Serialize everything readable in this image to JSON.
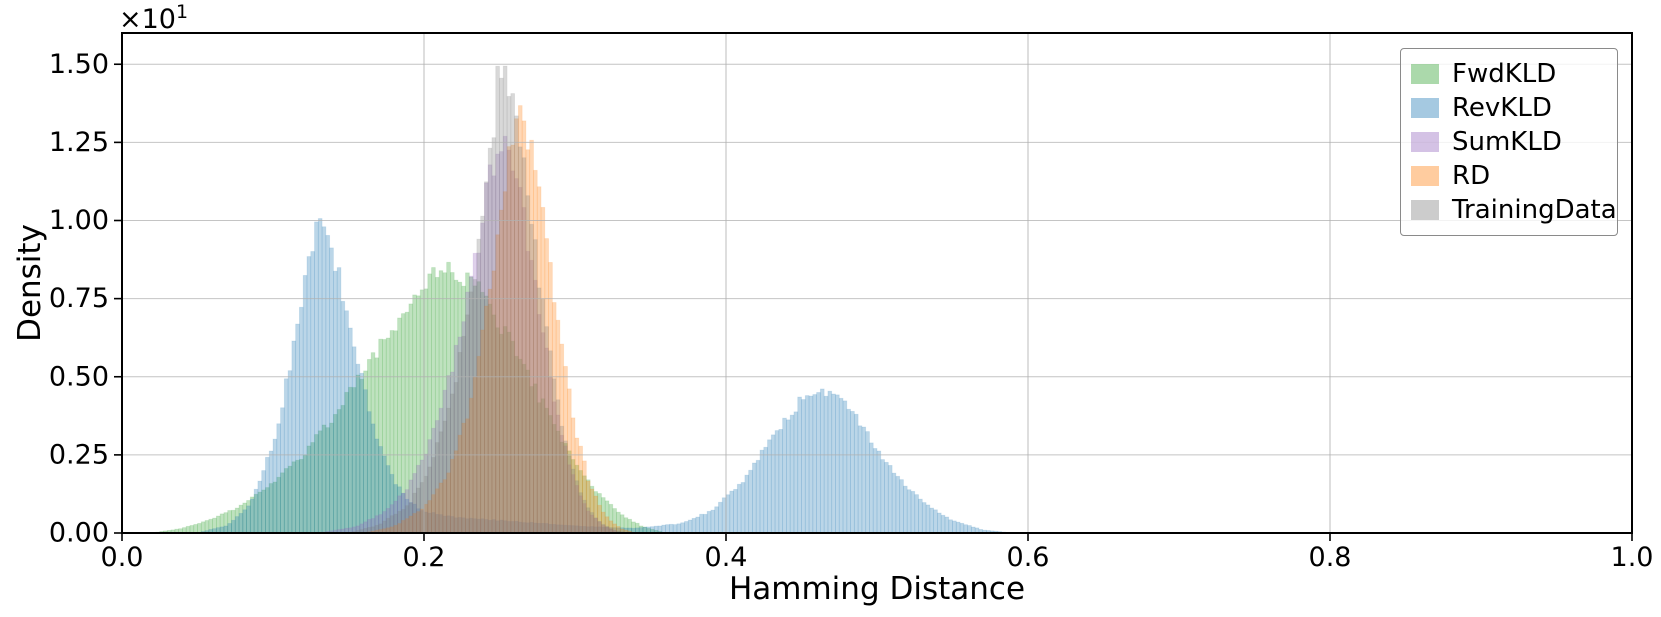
{
  "figure": {
    "xlabel": "Hamming Distance",
    "ylabel": "Density",
    "offset_text_base": "×10",
    "offset_text_exp": "1"
  },
  "chart_data": {
    "type": "bar",
    "subtype": "overlapping-density-histograms",
    "title": "",
    "xlabel": "Hamming Distance",
    "ylabel": "Density",
    "y_axis_offset_label": "×10¹",
    "xlim": [
      0.0,
      1.0
    ],
    "ylim": [
      0.0,
      16.0
    ],
    "grid": true,
    "legend_position": "upper right",
    "bin_width": 0.0025,
    "x_ticks": [
      {
        "value": 0.0,
        "label": "0.0"
      },
      {
        "value": 0.2,
        "label": "0.2"
      },
      {
        "value": 0.4,
        "label": "0.4"
      },
      {
        "value": 0.6,
        "label": "0.6"
      },
      {
        "value": 0.8,
        "label": "0.8"
      },
      {
        "value": 1.0,
        "label": "1.0"
      }
    ],
    "y_ticks": [
      {
        "value": 0.0,
        "label": "0.00"
      },
      {
        "value": 2.5,
        "label": "0.25"
      },
      {
        "value": 5.0,
        "label": "0.50"
      },
      {
        "value": 7.5,
        "label": "0.75"
      },
      {
        "value": 10.0,
        "label": "1.00"
      },
      {
        "value": 12.5,
        "label": "1.25"
      },
      {
        "value": 15.0,
        "label": "1.50"
      }
    ],
    "series": [
      {
        "name": "FwdKLD",
        "color": "#2ca02c",
        "fill_alpha": 0.3,
        "mode": 0.21,
        "peak_density": 8.5,
        "points": [
          [
            0.02,
            0.0
          ],
          [
            0.04,
            0.15
          ],
          [
            0.06,
            0.45
          ],
          [
            0.08,
            0.9
          ],
          [
            0.1,
            1.6
          ],
          [
            0.12,
            2.5
          ],
          [
            0.14,
            3.7
          ],
          [
            0.16,
            5.1
          ],
          [
            0.18,
            6.6
          ],
          [
            0.195,
            7.8
          ],
          [
            0.21,
            8.5
          ],
          [
            0.225,
            8.3
          ],
          [
            0.24,
            7.5
          ],
          [
            0.26,
            5.9
          ],
          [
            0.28,
            4.0
          ],
          [
            0.3,
            2.3
          ],
          [
            0.315,
            1.3
          ],
          [
            0.33,
            0.6
          ],
          [
            0.345,
            0.2
          ],
          [
            0.36,
            0.0
          ]
        ]
      },
      {
        "name": "RevKLD",
        "color": "#1f77b4",
        "fill_alpha": 0.3,
        "modes": [
          0.13,
          0.46
        ],
        "peak_densities": [
          10.0,
          4.65
        ],
        "points": [
          [
            0.05,
            0.0
          ],
          [
            0.07,
            0.25
          ],
          [
            0.085,
            0.9
          ],
          [
            0.1,
            2.8
          ],
          [
            0.11,
            5.0
          ],
          [
            0.12,
            7.6
          ],
          [
            0.13,
            10.0
          ],
          [
            0.14,
            9.0
          ],
          [
            0.15,
            6.9
          ],
          [
            0.16,
            4.7
          ],
          [
            0.17,
            2.9
          ],
          [
            0.18,
            1.7
          ],
          [
            0.19,
            1.0
          ],
          [
            0.2,
            0.7
          ],
          [
            0.22,
            0.5
          ],
          [
            0.25,
            0.4
          ],
          [
            0.28,
            0.3
          ],
          [
            0.31,
            0.2
          ],
          [
            0.34,
            0.15
          ],
          [
            0.37,
            0.3
          ],
          [
            0.39,
            0.7
          ],
          [
            0.41,
            1.6
          ],
          [
            0.43,
            3.0
          ],
          [
            0.45,
            4.3
          ],
          [
            0.46,
            4.65
          ],
          [
            0.475,
            4.35
          ],
          [
            0.49,
            3.4
          ],
          [
            0.51,
            2.0
          ],
          [
            0.53,
            1.0
          ],
          [
            0.55,
            0.4
          ],
          [
            0.57,
            0.1
          ],
          [
            0.59,
            0.0
          ]
        ]
      },
      {
        "name": "SumKLD",
        "color": "#9467bd",
        "fill_alpha": 0.3,
        "mode": 0.248,
        "peak_density": 12.6,
        "points": [
          [
            0.13,
            0.0
          ],
          [
            0.155,
            0.2
          ],
          [
            0.175,
            0.7
          ],
          [
            0.19,
            1.5
          ],
          [
            0.205,
            3.0
          ],
          [
            0.22,
            5.6
          ],
          [
            0.235,
            9.0
          ],
          [
            0.245,
            11.8
          ],
          [
            0.252,
            12.6
          ],
          [
            0.26,
            11.7
          ],
          [
            0.27,
            9.0
          ],
          [
            0.28,
            6.0
          ],
          [
            0.29,
            3.4
          ],
          [
            0.3,
            1.6
          ],
          [
            0.31,
            0.6
          ],
          [
            0.32,
            0.2
          ],
          [
            0.33,
            0.0
          ]
        ]
      },
      {
        "name": "RD",
        "color": "#ff7f0e",
        "fill_alpha": 0.3,
        "mode": 0.262,
        "peak_density": 13.4,
        "points": [
          [
            0.16,
            0.0
          ],
          [
            0.18,
            0.2
          ],
          [
            0.2,
            0.8
          ],
          [
            0.215,
            1.8
          ],
          [
            0.23,
            4.0
          ],
          [
            0.245,
            8.0
          ],
          [
            0.255,
            11.8
          ],
          [
            0.263,
            13.4
          ],
          [
            0.27,
            12.6
          ],
          [
            0.28,
            9.8
          ],
          [
            0.29,
            6.4
          ],
          [
            0.3,
            3.4
          ],
          [
            0.31,
            1.5
          ],
          [
            0.32,
            0.55
          ],
          [
            0.33,
            0.15
          ],
          [
            0.34,
            0.0
          ]
        ]
      },
      {
        "name": "TrainingData",
        "color": "#7f7f7f",
        "fill_alpha": 0.3,
        "mode": 0.25,
        "peak_density": 15.1,
        "points": [
          [
            0.15,
            0.0
          ],
          [
            0.17,
            0.25
          ],
          [
            0.19,
            0.9
          ],
          [
            0.205,
            2.2
          ],
          [
            0.22,
            4.6
          ],
          [
            0.235,
            8.6
          ],
          [
            0.245,
            12.6
          ],
          [
            0.25,
            15.1
          ],
          [
            0.257,
            14.2
          ],
          [
            0.265,
            12.0
          ],
          [
            0.275,
            8.6
          ],
          [
            0.285,
            5.2
          ],
          [
            0.295,
            2.6
          ],
          [
            0.305,
            1.1
          ],
          [
            0.315,
            0.4
          ],
          [
            0.325,
            0.1
          ],
          [
            0.335,
            0.0
          ]
        ]
      }
    ]
  }
}
